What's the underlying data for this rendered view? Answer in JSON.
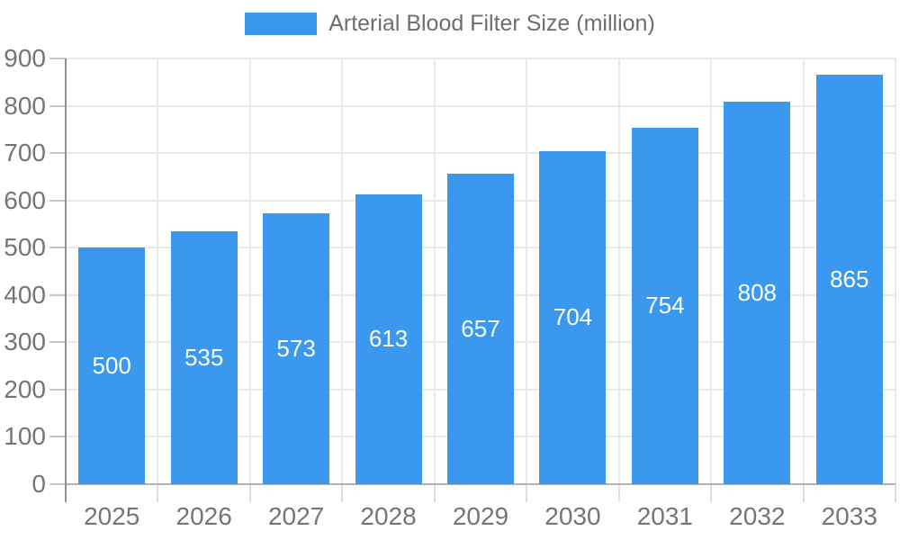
{
  "chart_data": {
    "type": "bar",
    "title": "",
    "categories": [
      "2025",
      "2026",
      "2027",
      "2028",
      "2029",
      "2030",
      "2031",
      "2032",
      "2033"
    ],
    "series": [
      {
        "name": "Arterial Blood Filter Size (million)",
        "values": [
          500,
          535,
          573,
          613,
          657,
          704,
          754,
          808,
          865
        ]
      }
    ],
    "xlabel": "",
    "ylabel": "",
    "ylim": [
      0,
      900
    ],
    "ytick_step": 100,
    "yticks": [
      0,
      100,
      200,
      300,
      400,
      500,
      600,
      700,
      800,
      900
    ],
    "grid": true,
    "bar_labels_shown": true,
    "bar_label_position": "center",
    "legend_position": "top-center",
    "colors": {
      "bar": "#3a99ee",
      "bar_label": "#ffffff",
      "axis_label": "#757575",
      "legend_text": "#6e6e6e",
      "gridline": "#e9e9e9",
      "y_axis_line": "#919191",
      "x_axis_line": "#b3b3b3",
      "y_tick": "#c9c9c9",
      "x_tick": "#dedede",
      "background": "#ffffff"
    }
  }
}
